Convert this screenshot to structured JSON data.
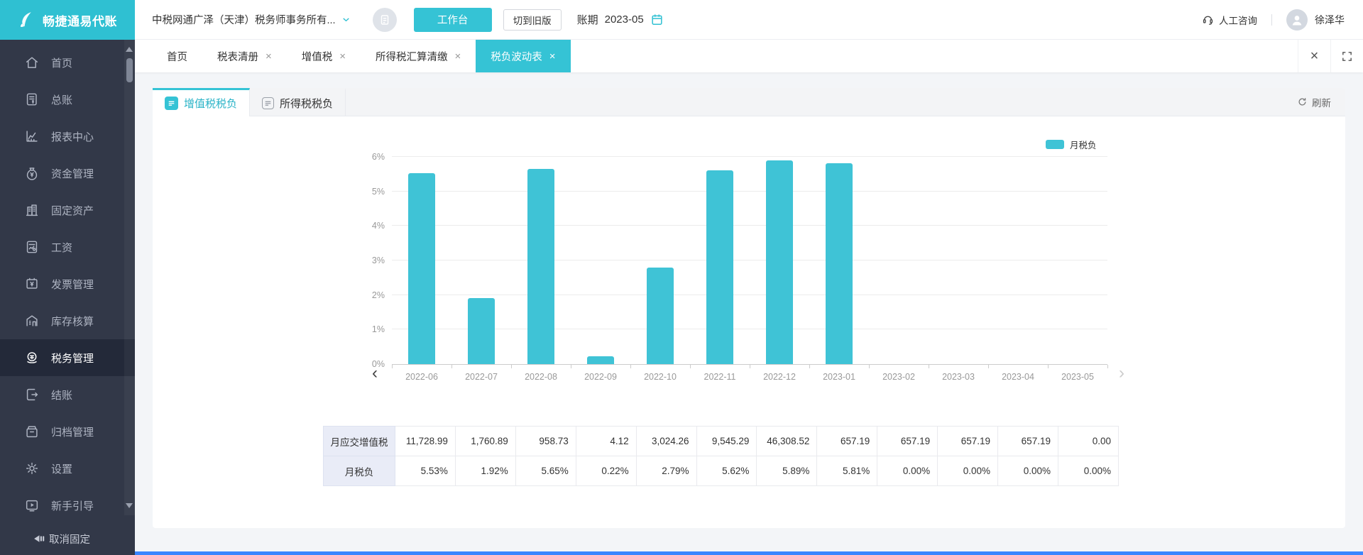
{
  "brand": {
    "logo_text": "畅捷通易代账",
    "teal": "#2fc0d2"
  },
  "topbar": {
    "company": "中税网通广泽（天津）税务师事务所有...",
    "workbench_label": "工作台",
    "switch_old_label": "切到旧版",
    "period_label": "账期",
    "period_value": "2023-05",
    "support_label": "人工咨询",
    "user_name": "徐泽华"
  },
  "sidebar": {
    "items": [
      {
        "key": "home",
        "label": "首页",
        "active": false
      },
      {
        "key": "general-ledger",
        "label": "总账",
        "active": false
      },
      {
        "key": "report-center",
        "label": "报表中心",
        "active": false
      },
      {
        "key": "funds",
        "label": "资金管理",
        "active": false
      },
      {
        "key": "fixed-assets",
        "label": "固定资产",
        "active": false
      },
      {
        "key": "salary",
        "label": "工资",
        "active": false
      },
      {
        "key": "invoice",
        "label": "发票管理",
        "active": false
      },
      {
        "key": "inventory",
        "label": "库存核算",
        "active": false
      },
      {
        "key": "tax",
        "label": "税务管理",
        "active": true
      },
      {
        "key": "closing",
        "label": "结账",
        "active": false
      },
      {
        "key": "archive",
        "label": "归档管理",
        "active": false
      },
      {
        "key": "settings",
        "label": "设置",
        "active": false
      },
      {
        "key": "guide",
        "label": "新手引导",
        "active": false
      }
    ],
    "unpin_label": "取消固定"
  },
  "tabs": [
    {
      "key": "home",
      "label": "首页",
      "closable": false,
      "active": false
    },
    {
      "key": "tax-form-register",
      "label": "税表清册",
      "closable": true,
      "active": false
    },
    {
      "key": "vat",
      "label": "增值税",
      "closable": true,
      "active": false
    },
    {
      "key": "income-tax-settlement",
      "label": "所得税汇算清缴",
      "closable": true,
      "active": false
    },
    {
      "key": "tax-burden-fluctuation",
      "label": "税负波动表",
      "closable": true,
      "active": true
    }
  ],
  "panel": {
    "subtabs": [
      {
        "key": "vat-burden",
        "label": "增值税税负",
        "active": true
      },
      {
        "key": "income-tax-burden",
        "label": "所得税税负",
        "active": false
      }
    ],
    "refresh_label": "刷新"
  },
  "chart_data": {
    "type": "bar",
    "title": "",
    "legend": [
      "月税负"
    ],
    "legend_position": "top-right",
    "categories": [
      "2022-06",
      "2022-07",
      "2022-08",
      "2022-09",
      "2022-10",
      "2022-11",
      "2022-12",
      "2023-01",
      "2023-02",
      "2023-03",
      "2023-04",
      "2023-05"
    ],
    "series": [
      {
        "name": "月税负",
        "values": [
          5.53,
          1.92,
          5.65,
          0.22,
          2.79,
          5.62,
          5.89,
          5.81,
          0.0,
          0.0,
          0.0,
          0.0
        ]
      }
    ],
    "unit": "%",
    "ylim": [
      0,
      6
    ],
    "yticks": [
      "0%",
      "1%",
      "2%",
      "3%",
      "4%",
      "5%",
      "6%"
    ],
    "grid": true,
    "bar_color": "#3fc3d6"
  },
  "table": {
    "rows": [
      {
        "label": "月应交增值税",
        "values": [
          "11,728.99",
          "1,760.89",
          "958.73",
          "4.12",
          "3,024.26",
          "9,545.29",
          "46,308.52",
          "657.19",
          "657.19",
          "657.19",
          "657.19",
          "0.00"
        ]
      },
      {
        "label": "月税负",
        "values": [
          "5.53%",
          "1.92%",
          "5.65%",
          "0.22%",
          "2.79%",
          "5.62%",
          "5.89%",
          "5.81%",
          "0.00%",
          "0.00%",
          "0.00%",
          "0.00%"
        ]
      }
    ]
  }
}
